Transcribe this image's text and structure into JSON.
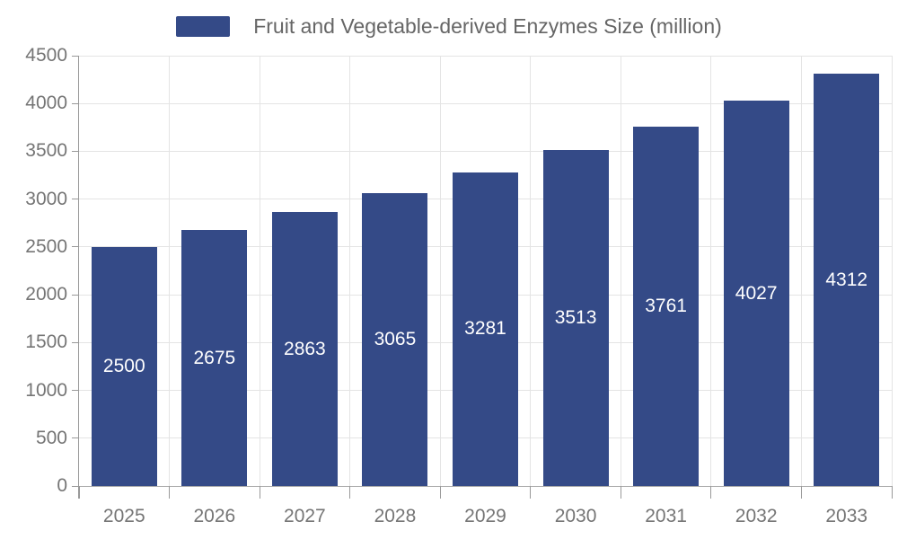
{
  "legend": {
    "label": "Fruit and Vegetable-derived Enzymes Size (million)"
  },
  "colors": {
    "bar": "#344A87",
    "bar_value_label": "#FFFFFF",
    "axis_line": "#999999",
    "x_axis_line": "#AAAAAA",
    "gridline": "#E4E4E4",
    "tick_label": "#757575",
    "legend_text": "#666666",
    "background": "#FFFFFF"
  },
  "chart_data": {
    "type": "bar",
    "title": "Fruit and Vegetable-derived Enzymes Size (million)",
    "categories": [
      "2025",
      "2026",
      "2027",
      "2028",
      "2029",
      "2030",
      "2031",
      "2032",
      "2033"
    ],
    "values": [
      2500,
      2675,
      2863,
      3065,
      3281,
      3513,
      3761,
      4027,
      4312
    ],
    "xlabel": "",
    "ylabel": "",
    "ylim": [
      0,
      4500
    ],
    "ytick_step": 500,
    "yticks": [
      0,
      500,
      1000,
      1500,
      2000,
      2500,
      3000,
      3500,
      4000,
      4500
    ],
    "grid": true,
    "legend_position": "top",
    "bar_labels_inside": true
  }
}
